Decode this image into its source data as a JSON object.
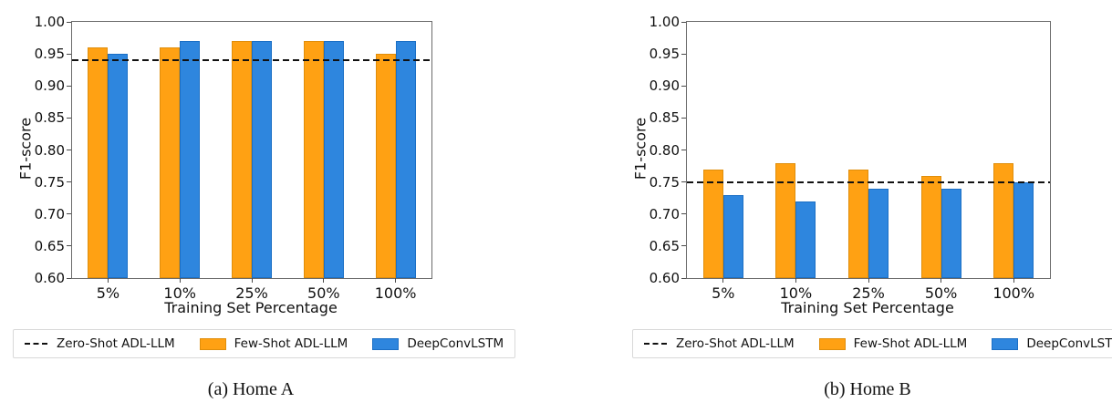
{
  "figure": {
    "legend": {
      "items": [
        {
          "label": "Zero-Shot ADL-LLM",
          "swatch": "dashed-line",
          "color": "#111111"
        },
        {
          "label": "Few-Shot ADL-LLM",
          "swatch": "rect",
          "color": "#FFA113",
          "edge": "#E08E0B"
        },
        {
          "label": "DeepConvLSTM",
          "swatch": "rect",
          "color": "#2E86DE",
          "edge": "#1B6FC5"
        }
      ]
    }
  },
  "chart_data": [
    {
      "type": "bar",
      "title": "(a) Home A",
      "categories": [
        "5%",
        "10%",
        "25%",
        "50%",
        "100%"
      ],
      "series": [
        {
          "name": "Few-Shot ADL-LLM",
          "color": "#FFA113",
          "edge": "#E08E0B",
          "values": [
            0.96,
            0.96,
            0.97,
            0.97,
            0.95
          ]
        },
        {
          "name": "DeepConvLSTM",
          "color": "#2E86DE",
          "edge": "#1B6FC5",
          "values": [
            0.95,
            0.97,
            0.97,
            0.97,
            0.97
          ]
        }
      ],
      "reference_line": {
        "name": "Zero-Shot ADL-LLM",
        "value": 0.94,
        "style": "dashed",
        "color": "#111111"
      },
      "xlabel": "Training Set Percentage",
      "ylabel": "F1-score",
      "ylim": [
        0.6,
        1.0
      ],
      "yticks": [
        0.6,
        0.65,
        0.7,
        0.75,
        0.8,
        0.85,
        0.9,
        0.95,
        1.0
      ],
      "grid": false,
      "legend_position": "below"
    },
    {
      "type": "bar",
      "title": "(b) Home B",
      "categories": [
        "5%",
        "10%",
        "25%",
        "50%",
        "100%"
      ],
      "series": [
        {
          "name": "Few-Shot ADL-LLM",
          "color": "#FFA113",
          "edge": "#E08E0B",
          "values": [
            0.77,
            0.78,
            0.77,
            0.76,
            0.78
          ]
        },
        {
          "name": "DeepConvLSTM",
          "color": "#2E86DE",
          "edge": "#1B6FC5",
          "values": [
            0.73,
            0.72,
            0.74,
            0.74,
            0.75
          ]
        }
      ],
      "reference_line": {
        "name": "Zero-Shot ADL-LLM",
        "value": 0.75,
        "style": "dashed",
        "color": "#111111"
      },
      "xlabel": "Training Set Percentage",
      "ylabel": "F1-score",
      "ylim": [
        0.6,
        1.0
      ],
      "yticks": [
        0.6,
        0.65,
        0.7,
        0.75,
        0.8,
        0.85,
        0.9,
        0.95,
        1.0
      ],
      "grid": false,
      "legend_position": "below"
    }
  ]
}
